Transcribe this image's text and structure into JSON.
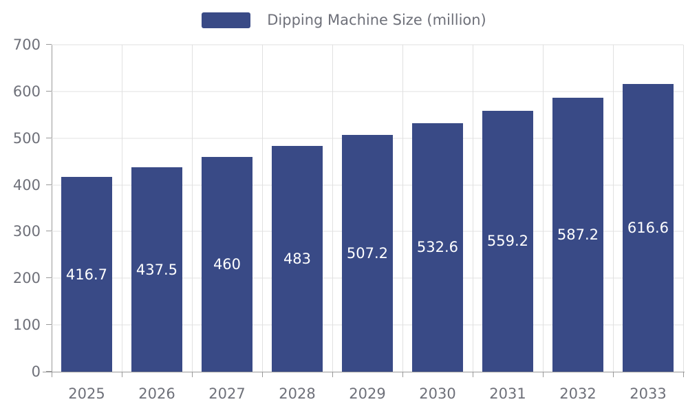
{
  "chart": {
    "background": "#ffffff",
    "legend": {
      "label": "Dipping Machine Size (million)"
    },
    "colors": {
      "bar": "#394A86",
      "grid": "#E0E0E0",
      "axis": "#999999",
      "axis_label": "#6E7079",
      "value_label": "#ffffff"
    }
  },
  "chart_data": {
    "type": "bar",
    "title": "Dipping Machine Size (million)",
    "categories": [
      "2025",
      "2026",
      "2027",
      "2028",
      "2029",
      "2030",
      "2031",
      "2032",
      "2033"
    ],
    "series": [
      {
        "name": "Dipping Machine Size (million)",
        "values": [
          416.7,
          437.5,
          460,
          483,
          507.2,
          532.6,
          559.2,
          587.2,
          616.6
        ]
      }
    ],
    "xlabel": "",
    "ylabel": "",
    "ylim": [
      0,
      700
    ],
    "yticks": [
      0,
      100,
      200,
      300,
      400,
      500,
      600,
      700
    ],
    "grid": true,
    "legend_position": "top",
    "value_label_position": "inside-center",
    "bar_width_fraction": 0.73
  }
}
